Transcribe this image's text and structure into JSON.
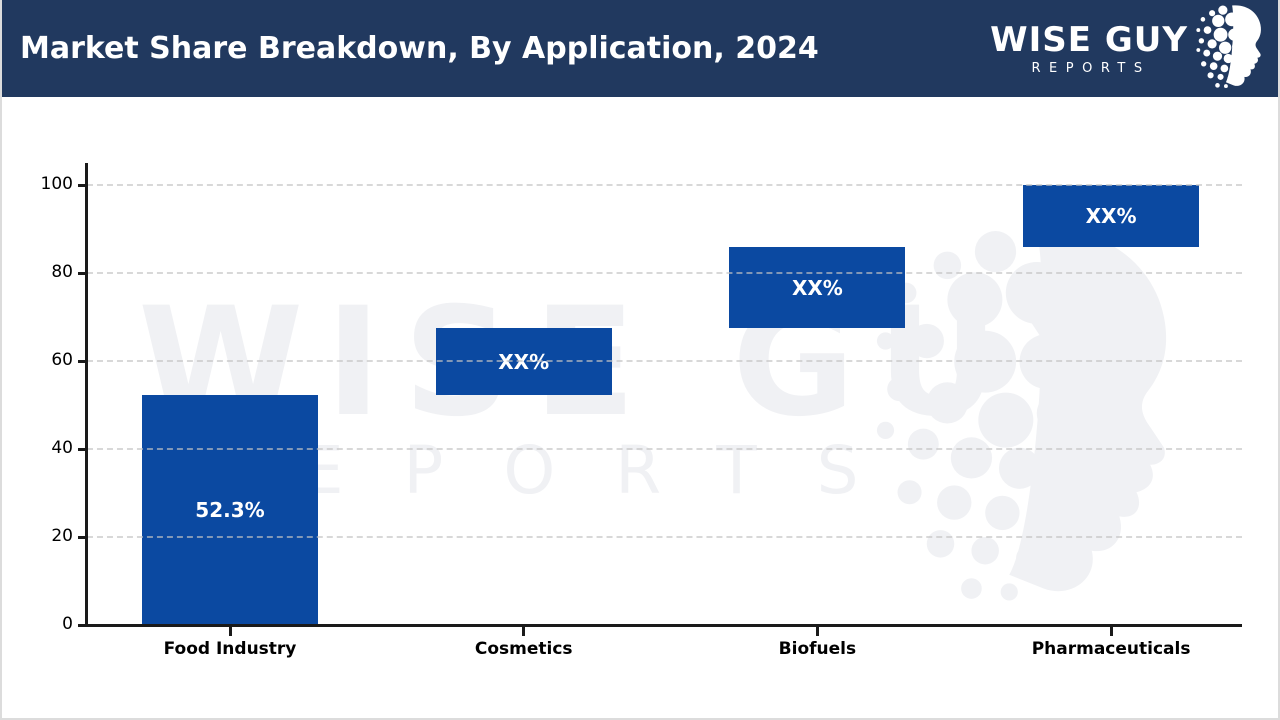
{
  "header": {
    "title": "Market Share Breakdown, By Application, 2024",
    "logo": {
      "primary": "WISE GUY",
      "secondary": "REPORTS"
    }
  },
  "watermark": {
    "primary": "WISE GUY",
    "secondary": "REPORTS"
  },
  "chart_data": {
    "type": "bar",
    "subtype": "waterfall (floating cumulative segments)",
    "title": "Market Share Breakdown, By Application, 2024",
    "categories": [
      "Food Industry",
      "Cosmetics",
      "Biofuels",
      "Pharmaceuticals"
    ],
    "series": [
      {
        "name": "Market share (%)",
        "segments": [
          {
            "category": "Food Industry",
            "start": 0,
            "end": 52.3,
            "label": "52.3%"
          },
          {
            "category": "Cosmetics",
            "start": 52.3,
            "end": 67.4,
            "label": "XX%"
          },
          {
            "category": "Biofuels",
            "start": 67.4,
            "end": 85.9,
            "label": "XX%"
          },
          {
            "category": "Pharmaceuticals",
            "start": 85.9,
            "end": 100,
            "label": "XX%"
          }
        ]
      }
    ],
    "xlabel": "",
    "ylabel": "",
    "ylim": [
      0,
      100
    ],
    "yticks": [
      0,
      20,
      40,
      60,
      80,
      100
    ],
    "grid": {
      "horizontal": true,
      "style": "dashed",
      "drawn_over_bars": true
    },
    "legend": null,
    "colors": {
      "bar": "#0b49a1",
      "bar_label": "#ffffff",
      "axis": "#1a1a1a",
      "gridline": "#c3c3c3",
      "header_bg": "#21395f",
      "watermark": "#f0f1f4"
    }
  }
}
